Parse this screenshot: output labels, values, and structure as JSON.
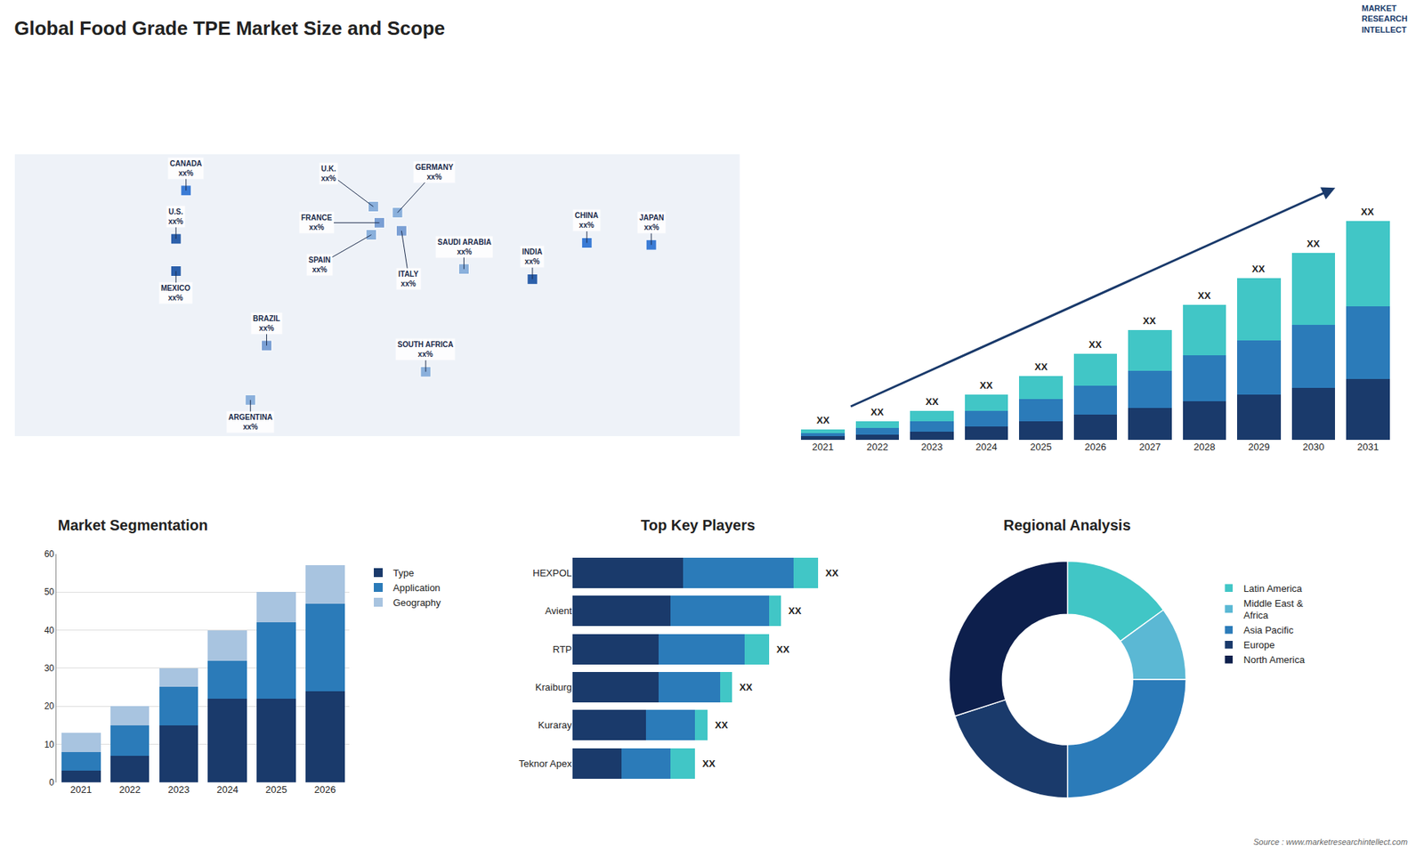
{
  "title": "Global Food Grade TPE Market Size and Scope",
  "annotations": [
    "Source : www.marketresearchintellect.com",
    "MARKET\nRESEARCH\nINTELLECT"
  ],
  "chart_data": [
    {
      "type": "map",
      "x": [
        -100,
        -95,
        -100,
        -55,
        -63,
        -2,
        1,
        -3,
        10,
        12,
        43,
        24,
        104,
        77,
        136
      ],
      "y": [
        38,
        62,
        22,
        -15,
        -42,
        54,
        46,
        40,
        51,
        42,
        23,
        -28,
        36,
        18,
        35
      ],
      "annotations": [
        "U.S.\nxx%",
        "CANADA\nxx%",
        "MEXICO\nxx%",
        "BRAZIL\nxx%",
        "ARGENTINA\nxx%",
        "U.K.\nxx%",
        "FRANCE\nxx%",
        "SPAIN\nxx%",
        "GERMANY\nxx%",
        "ITALY\nxx%",
        "SAUDI ARABIA\nxx%",
        "SOUTH AFRICA\nxx%",
        "CHINA\nxx%",
        "INDIA\nxx%",
        "JAPAN\nxx%"
      ],
      "colors": [
        "#2b5faa",
        "#3a7bd5",
        "#2b5faa",
        "#7a9fd4",
        "#8ab0dc",
        "#8ab0dc",
        "#7a9fd4",
        "#8ab0dc",
        "#8ab0dc",
        "#7a9fd4",
        "#8ab0dc",
        "#8ab0dc",
        "#3a7bd5",
        "#2b5faa",
        "#3a7bd5"
      ],
      "xlim": [
        -180,
        180
      ],
      "ylim": [
        -60,
        80
      ],
      "tick_labels": false,
      "grid": false
    },
    {
      "type": "bar",
      "categories": [
        "2021",
        "2022",
        "2023",
        "2024",
        "2025",
        "2026",
        "2027",
        "2028",
        "2029",
        "2030",
        "2031"
      ],
      "series": [
        {
          "color": "#1a3a6b",
          "values": [
            2,
            3,
            5,
            8,
            11,
            15,
            19,
            23,
            27,
            31,
            36
          ]
        },
        {
          "color": "#2b7bb9",
          "values": [
            2,
            4,
            6,
            9,
            13,
            17,
            22,
            27,
            32,
            37,
            43
          ]
        },
        {
          "color": "#41c6c6",
          "values": [
            2,
            4,
            6,
            10,
            14,
            19,
            24,
            30,
            37,
            43,
            51
          ]
        }
      ],
      "stacked": true,
      "annotations": [
        "XX",
        "XX",
        "XX",
        "XX",
        "XX",
        "XX",
        "XX",
        "XX",
        "XX",
        "XX",
        "XX"
      ],
      "ylim": [
        0,
        162.5
      ],
      "tick_labels": "x",
      "grid": false
    },
    {
      "type": "bar",
      "title": "Market Segmentation",
      "categories": [
        "2021",
        "2022",
        "2023",
        "2024",
        "2025",
        "2026"
      ],
      "series": [
        {
          "name": "Type",
          "color": "#1a3a6b",
          "values": [
            3,
            7,
            15,
            22,
            22,
            24
          ]
        },
        {
          "name": "Application",
          "color": "#2b7bb9",
          "values": [
            5,
            8,
            10,
            10,
            20,
            23
          ]
        },
        {
          "name": "Geography",
          "color": "#a8c4e0",
          "values": [
            5,
            5,
            5,
            8,
            8,
            10
          ]
        }
      ],
      "stacked": true,
      "ylim": [
        0,
        60
      ],
      "yticks": [
        0,
        10,
        20,
        30,
        40,
        50,
        60
      ],
      "grid": true,
      "legend": "right"
    },
    {
      "type": "bar",
      "title": "Top Key Players",
      "orientation": "horizontal",
      "categories": [
        "HEXPOL",
        "Avient",
        "RTP",
        "Kraiburg",
        "Kuraray",
        "Teknor Apex"
      ],
      "series": [
        {
          "color": "#1a3a6b",
          "values": [
            9,
            8,
            7,
            7,
            6,
            4
          ]
        },
        {
          "color": "#2b7bb9",
          "values": [
            9,
            8,
            7,
            5,
            4,
            4
          ]
        },
        {
          "color": "#41c6c6",
          "values": [
            2,
            1,
            2,
            1,
            1,
            2
          ]
        }
      ],
      "stacked": true,
      "annotations": [
        "XX",
        "XX",
        "XX",
        "XX",
        "XX",
        "XX"
      ],
      "xlim": [
        0,
        25
      ],
      "tick_labels": "y",
      "grid": false
    },
    {
      "type": "pie",
      "title": "Regional Analysis",
      "categories": [
        "Latin America",
        "Middle East &\nAfrica",
        "Asia Pacific",
        "Europe",
        "North America"
      ],
      "values": [
        15,
        10,
        25,
        20,
        30
      ],
      "colors": [
        "#41c6c6",
        "#5bb8d4",
        "#2b7bb9",
        "#1a3a6b",
        "#0d1f4c"
      ],
      "legend": "right",
      "data_labels": false
    }
  ]
}
